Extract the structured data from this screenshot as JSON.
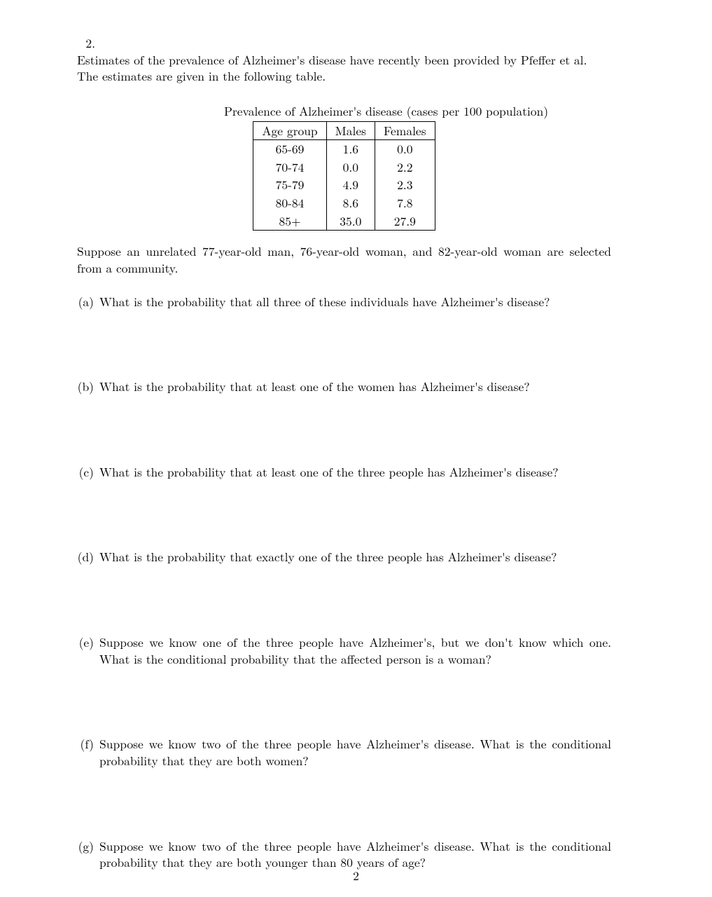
{
  "question_number": "2.",
  "intro": "Estimates of the prevalence of Alzheimer's disease have recently been provided by Pfeffer et al. The estimates are given in the following table.",
  "table": {
    "caption": "Prevalence of Alzheimer's disease (cases per 100 population)",
    "columns": [
      "Age group",
      "Males",
      "Females"
    ],
    "rows": [
      [
        "65-69",
        "1.6",
        "0.0"
      ],
      [
        "70-74",
        "0.0",
        "2.2"
      ],
      [
        "75-79",
        "4.9",
        "2.3"
      ],
      [
        "80-84",
        "8.6",
        "7.8"
      ],
      [
        "85+",
        "35.0",
        "27.9"
      ]
    ]
  },
  "intro2": "Suppose an unrelated 77-year-old man, 76-year-old woman, and 82-year-old woman are selected from a community.",
  "subparts": [
    {
      "label": "(a)",
      "text": "What is the probability that all three of these individuals have Alzheimer's disease?"
    },
    {
      "label": "(b)",
      "text": "What is the probability that at least one of the women has Alzheimer's disease?"
    },
    {
      "label": "(c)",
      "text": "What is the probability that at least one of the three people has Alzheimer's disease?"
    },
    {
      "label": "(d)",
      "text": "What is the probability that exactly one of the three people has Alzheimer's disease?"
    },
    {
      "label": "(e)",
      "text": "Suppose we know one of the three people have Alzheimer's, but we don't know which one. What is the conditional probability that the affected person is a woman?"
    },
    {
      "label": "(f)",
      "text": "Suppose we know two of the three people have Alzheimer's disease. What is the conditional probability that they are both women?"
    },
    {
      "label": "(g)",
      "text": "Suppose we know two of the three people have Alzheimer's disease. What is the conditional probability that they are both younger than 80 years of age?"
    }
  ],
  "page_number": "2"
}
